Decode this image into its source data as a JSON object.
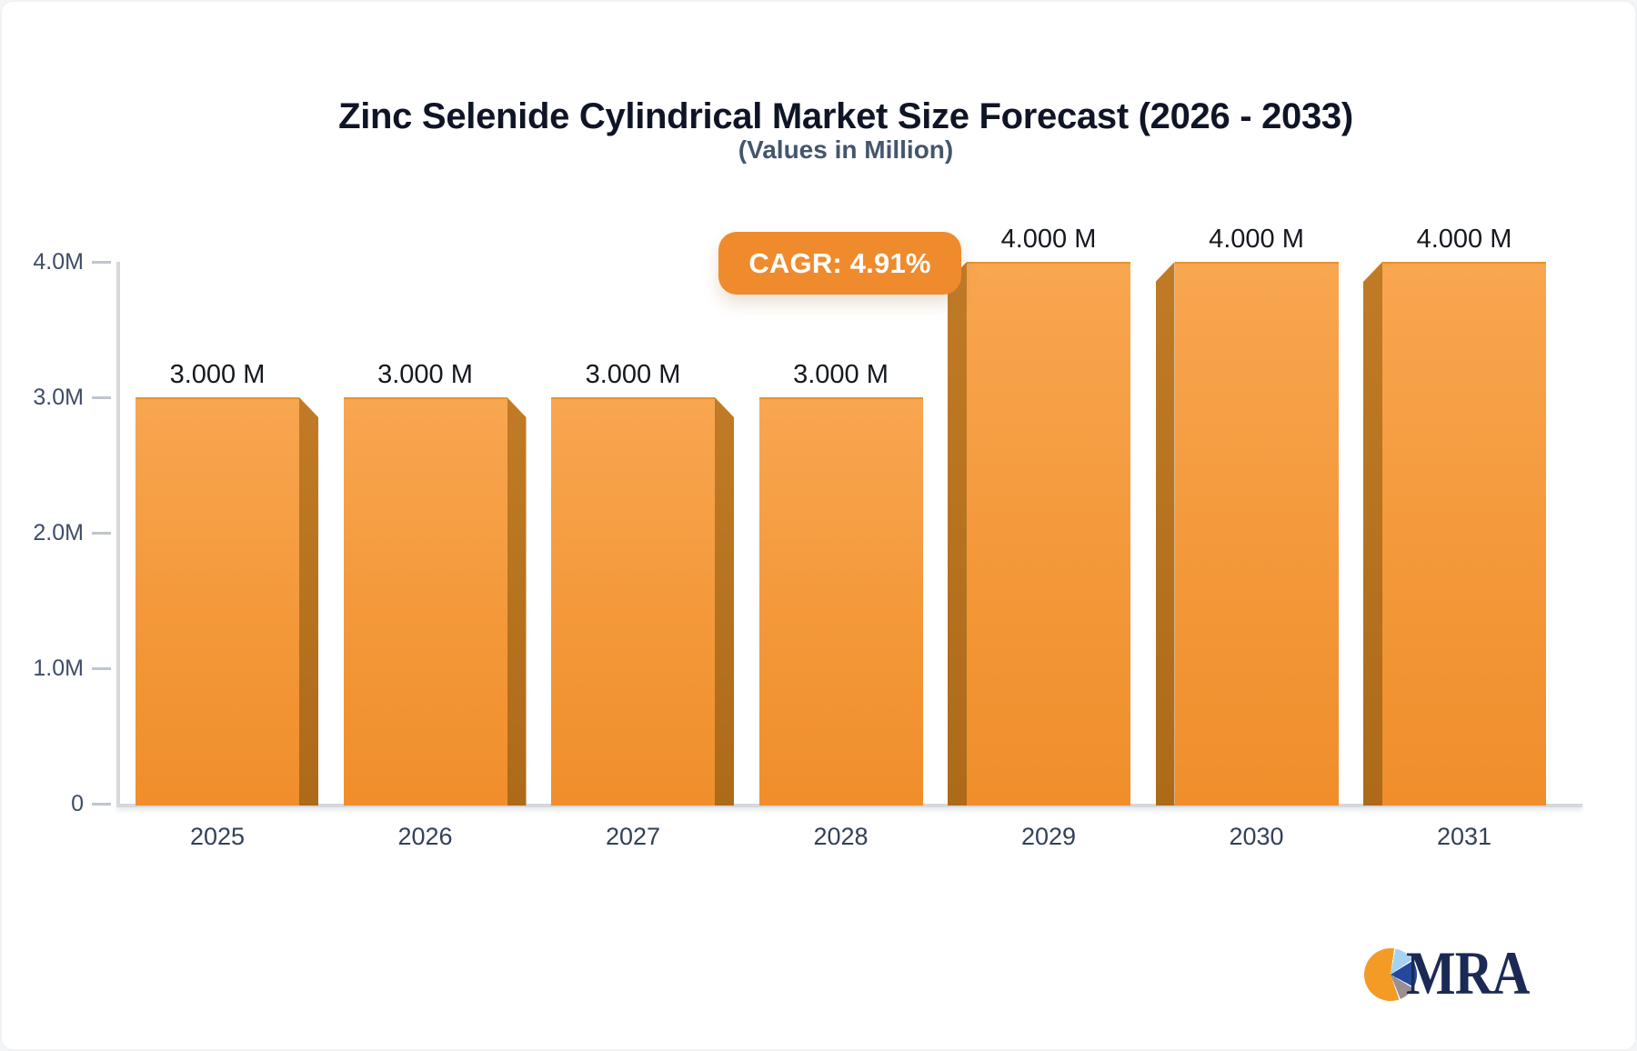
{
  "header": {
    "title": "Zinc Selenide Cylindrical Market Size Forecast (2026 - 2033)",
    "subtitle": "(Values in Million)"
  },
  "badge": {
    "label": "CAGR: 4.91%",
    "bg_color": "#ef8b2d",
    "text_color": "#ffffff"
  },
  "chart_data": {
    "type": "bar",
    "title": "Zinc Selenide Cylindrical Market Size Forecast (2026 - 2033)",
    "subtitle": "(Values in Million)",
    "categories": [
      "2025",
      "2026",
      "2027",
      "2028",
      "2029",
      "2030",
      "2031"
    ],
    "values": [
      3.0,
      3.0,
      3.0,
      3.0,
      4.0,
      4.0,
      4.0
    ],
    "values_unit": "millions",
    "value_labels": [
      "3.000 M",
      "3.000 M",
      "3.000 M",
      "3.000 M",
      "4.000 M",
      "4.000 M",
      "4.000 M"
    ],
    "xlabel": "",
    "ylabel": "",
    "ylim": [
      0,
      4.0
    ],
    "grid": false,
    "legend": false,
    "y_axis": {
      "ticks": [
        {
          "label": "0",
          "value": 0
        },
        {
          "label": "1.0M",
          "value": 1
        },
        {
          "label": "2.0M",
          "value": 2
        },
        {
          "label": "3.0M",
          "value": 3
        },
        {
          "label": "4.0M",
          "value": 4
        }
      ]
    },
    "colors": {
      "bar_face_top": "#f8a650",
      "bar_face_bottom": "#f08e2b",
      "bar_side": "#b8721e",
      "axis_line": "#d5d8dc",
      "tick_label": "#3e4e66",
      "category_label": "#32415a",
      "value_label": "#15191f"
    }
  },
  "logo": {
    "text": "MRA",
    "text_color": "#1b2a55",
    "pie_slices": [
      {
        "name": "orange",
        "color": "#f49b26"
      },
      {
        "name": "light-blue",
        "color": "#a5d2f0"
      },
      {
        "name": "dark-blue",
        "color": "#24499c"
      },
      {
        "name": "gray",
        "color": "#9a8f94"
      }
    ]
  }
}
